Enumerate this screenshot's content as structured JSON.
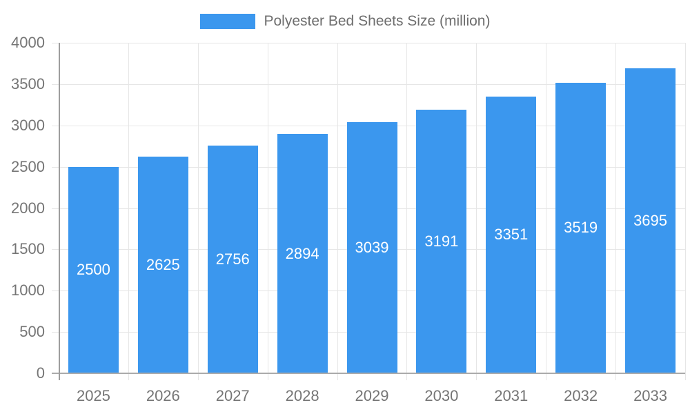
{
  "legend": {
    "label": "Polyester Bed Sheets Size (million)"
  },
  "chart_data": {
    "type": "bar",
    "title": "",
    "categories": [
      "2025",
      "2026",
      "2027",
      "2028",
      "2029",
      "2030",
      "2031",
      "2032",
      "2033"
    ],
    "series": [
      {
        "name": "Polyester Bed Sheets Size (million)",
        "values": [
          2500,
          2625,
          2756,
          2894,
          3039,
          3191,
          3351,
          3519,
          3695
        ]
      }
    ],
    "xlabel": "",
    "ylabel": "",
    "ylim": [
      0,
      4000
    ],
    "yticks": [
      0,
      500,
      1000,
      1500,
      2000,
      2500,
      3000,
      3500,
      4000
    ],
    "grid": true,
    "legend_position": "top",
    "bar_labels_inside": true
  },
  "colors": {
    "bar": "#3B97EE",
    "bar_label": "#FFFFFF",
    "axis_text": "#757575",
    "legend_text": "#6E6E6E",
    "gridline": "#E6E6E6",
    "x_axis_line": "#ABABAB",
    "y_axis_line": "#9E9E9E",
    "background": "#FFFFFF"
  }
}
